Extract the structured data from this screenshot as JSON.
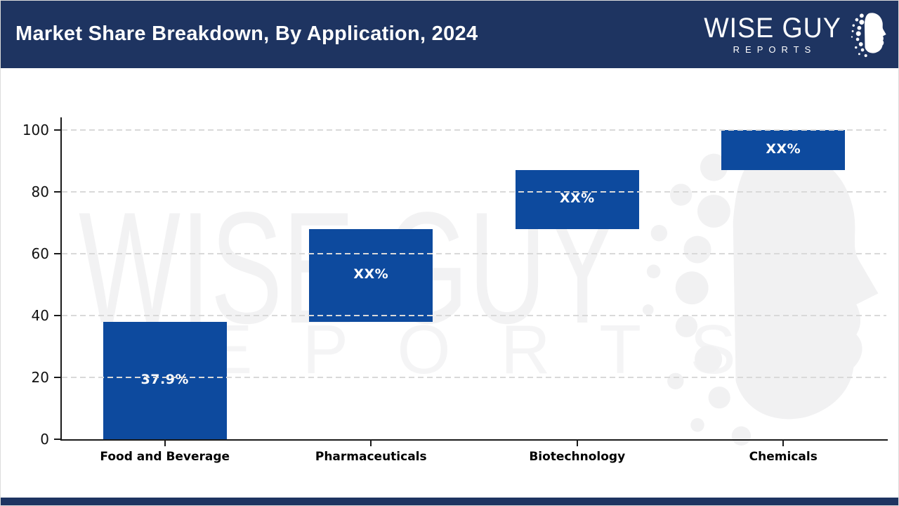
{
  "header": {
    "title": "Market Share Breakdown, By Application, 2024",
    "logo_line1": "WISE GUY",
    "logo_line2": "REPORTS",
    "bg_color": "#1e3461"
  },
  "watermark": {
    "line1": "WISE GUY",
    "line2": "R E P O R T S"
  },
  "chart_data": {
    "type": "bar",
    "subtype": "waterfall",
    "title": "Market Share Breakdown, By Application, 2024",
    "categories": [
      "Food and Beverage",
      "Pharmaceuticals",
      "Biotechnology",
      "Chemicals"
    ],
    "segments": [
      {
        "category": "Food and Beverage",
        "start": 0,
        "end": 37.9,
        "value": 37.9,
        "label": "37.9%"
      },
      {
        "category": "Pharmaceuticals",
        "start": 37.9,
        "end": 68.0,
        "value": 30.1,
        "label": "XX%"
      },
      {
        "category": "Biotechnology",
        "start": 68.0,
        "end": 87.0,
        "value": 19.0,
        "label": "XX%"
      },
      {
        "category": "Chemicals",
        "start": 87.0,
        "end": 100.0,
        "value": 13.0,
        "label": "XX%"
      }
    ],
    "xlabel": "",
    "ylabel": "",
    "ylim": [
      0,
      100
    ],
    "yticks": [
      0,
      20,
      40,
      60,
      80,
      100
    ],
    "grid": "horizontal-dashed",
    "legend": "none",
    "bar_color": "#0d4a9e",
    "bar_label_color": "#ffffff",
    "axis_color": "#1a1a1a",
    "gridline_color": "#d9d9d9"
  }
}
